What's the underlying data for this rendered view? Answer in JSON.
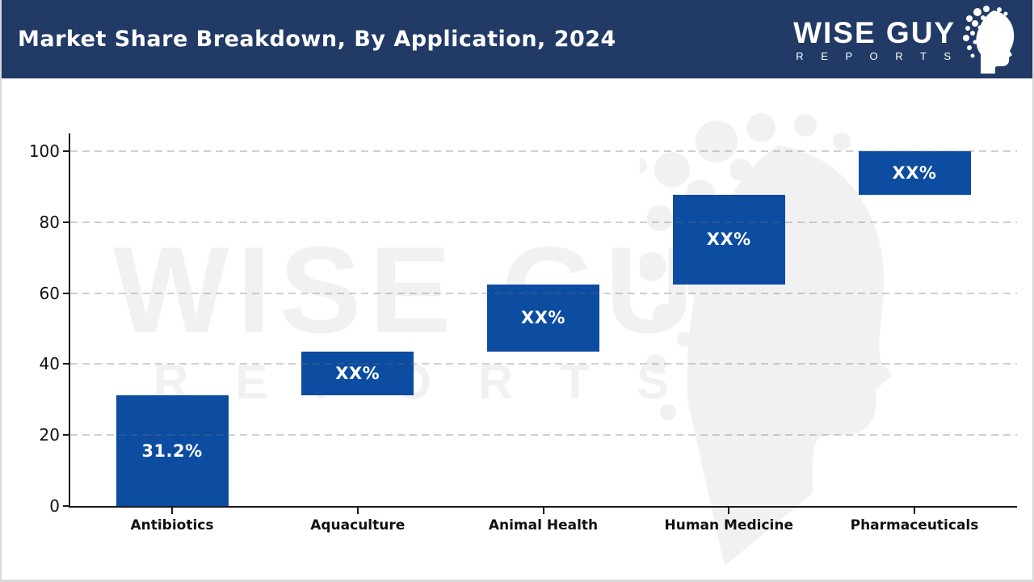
{
  "header": {
    "title": "Market Share Breakdown, By Application, 2024",
    "bg_color": "#213A66",
    "logo": {
      "line1": "WISE GUY",
      "line2": "R E P O R T S"
    }
  },
  "watermark": {
    "line1": "WISE GUY",
    "line2": "REPORTS"
  },
  "chart_data": {
    "type": "bar",
    "subtype": "waterfall",
    "title": "Market Share Breakdown, By Application, 2024",
    "categories": [
      "Antibiotics",
      "Aquaculture",
      "Animal Health",
      "Human Medicine",
      "Pharmaceuticals"
    ],
    "segments": [
      {
        "category": "Antibiotics",
        "start": 0,
        "end": 31.2,
        "label": "31.2%"
      },
      {
        "category": "Aquaculture",
        "start": 31.2,
        "end": 43.5,
        "label": "XX%"
      },
      {
        "category": "Animal Health",
        "start": 43.5,
        "end": 62.5,
        "label": "XX%"
      },
      {
        "category": "Human Medicine",
        "start": 62.5,
        "end": 87.8,
        "label": "XX%"
      },
      {
        "category": "Pharmaceuticals",
        "start": 87.8,
        "end": 100,
        "label": "XX%"
      }
    ],
    "xlabel": "",
    "ylabel": "",
    "ylim": [
      0,
      100
    ],
    "yticks": [
      0,
      20,
      40,
      60,
      80,
      100
    ],
    "grid": "horizontal-dashed",
    "legend": "none",
    "bar_color": "#0C4CA1",
    "bar_label_color": "#FFFFFF"
  }
}
